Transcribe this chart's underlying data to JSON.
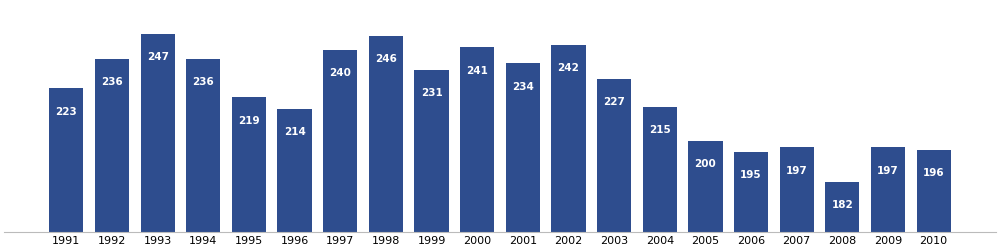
{
  "years": [
    1991,
    1992,
    1993,
    1994,
    1995,
    1996,
    1997,
    1998,
    1999,
    2000,
    2001,
    2002,
    2003,
    2004,
    2005,
    2006,
    2007,
    2008,
    2009,
    2010
  ],
  "values": [
    223,
    236,
    247,
    236,
    219,
    214,
    240,
    246,
    231,
    241,
    234,
    242,
    227,
    215,
    200,
    195,
    197,
    182,
    197,
    196
  ],
  "bar_color": "#2e4d8e",
  "label_color": "#ffffff",
  "label_fontsize": 7.5,
  "tick_fontsize": 8,
  "background_color": "#ffffff",
  "bar_width": 0.75,
  "ylim": [
    160,
    260
  ]
}
